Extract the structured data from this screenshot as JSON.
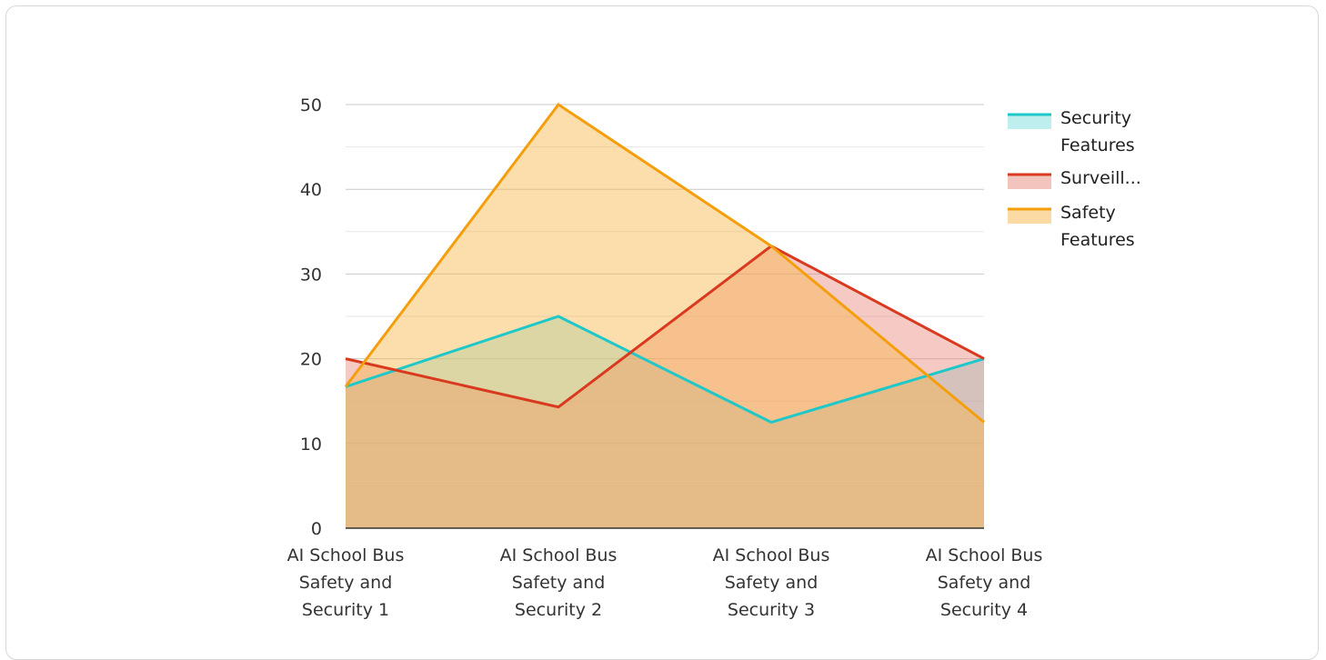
{
  "chart_data": {
    "type": "area",
    "categories": [
      [
        "AI School Bus",
        "Safety and",
        "Security 1"
      ],
      [
        "AI School Bus",
        "Safety and",
        "Security 2"
      ],
      [
        "AI School Bus",
        "Safety and",
        "Security 3"
      ],
      [
        "AI School Bus",
        "Safety and",
        "Security 4"
      ]
    ],
    "series": [
      {
        "name": [
          "Security",
          "Features"
        ],
        "values": [
          16.7,
          25,
          12.5,
          20
        ],
        "color": "#1ec8c8",
        "fill": "#7fdede"
      },
      {
        "name": [
          "Surveill..."
        ],
        "values": [
          20,
          14.3,
          33.3,
          20
        ],
        "color": "#d93a1f",
        "fill": "#e88a7c"
      },
      {
        "name": [
          "Safety",
          "Features"
        ],
        "values": [
          16.7,
          50,
          33.3,
          12.5
        ],
        "color": "#f59e0b",
        "fill": "#f9b54a"
      }
    ],
    "ylim": [
      0,
      50
    ],
    "yticks": [
      0,
      10,
      20,
      30,
      40,
      50
    ],
    "grid": true,
    "legend": "top-right"
  }
}
